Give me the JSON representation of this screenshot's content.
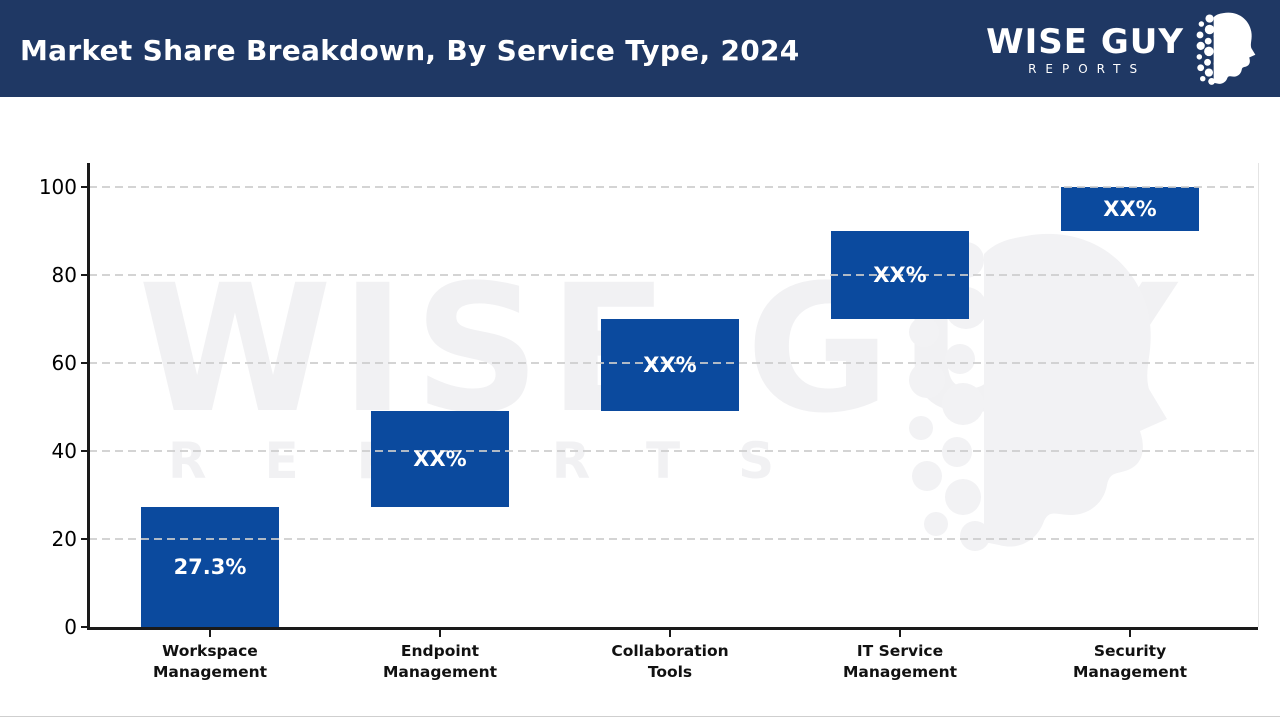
{
  "header": {
    "title": "Market Share Breakdown, By Service Type, 2024",
    "logo": {
      "name_top": "WISE GUY",
      "name_bottom": "REPORTS"
    }
  },
  "watermark": {
    "text_top": "WISE GUY",
    "text_bottom": "REPORTS"
  },
  "chart_data": {
    "type": "bar",
    "subtype": "waterfall-floating-segments",
    "title": "Market Share Breakdown, By Service Type, 2024",
    "categories": [
      "Workspace\nManagement",
      "Endpoint\nManagement",
      "Collaboration\nTools",
      "IT Service\nManagement",
      "Security\nManagement"
    ],
    "segments": [
      {
        "category": "Workspace Management",
        "start": 0,
        "end": 27.3,
        "value": 27.3,
        "label": "27.3%"
      },
      {
        "category": "Endpoint Management",
        "start": 27.3,
        "end": 49,
        "value": 21.7,
        "label": "XX%"
      },
      {
        "category": "Collaboration Tools",
        "start": 49,
        "end": 70,
        "value": 21,
        "label": "XX%"
      },
      {
        "category": "IT Service Management",
        "start": 70,
        "end": 90,
        "value": 20,
        "label": "XX%"
      },
      {
        "category": "Security Management",
        "start": 90,
        "end": 100,
        "value": 10,
        "label": "XX%"
      }
    ],
    "yticks": [
      0,
      20,
      40,
      60,
      80,
      100
    ],
    "ylim": [
      0,
      105
    ],
    "xlabel": "",
    "ylabel": "",
    "grid": "horizontal-dashed",
    "legend": "none",
    "bar_color": "#0b4a9e",
    "bar_label_color": "#ffffff"
  },
  "colors": {
    "header_bg": "#1f3864",
    "bar": "#0b4a9e",
    "grid": "#cdcdcd",
    "axis": "#1a1a1a",
    "watermark": "#f1f1f3"
  }
}
